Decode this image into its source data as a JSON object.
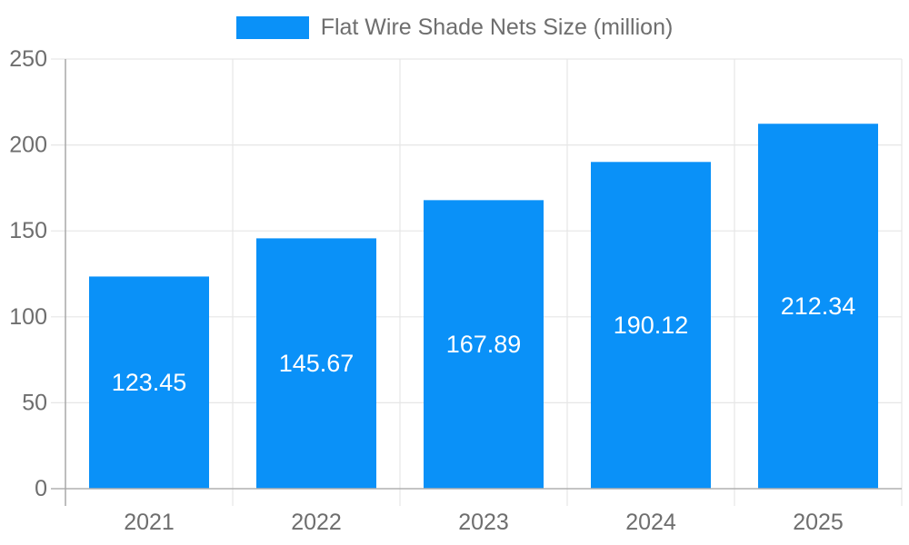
{
  "legend": {
    "label": "Flat Wire Shade Nets Size (million)",
    "swatch_color": "#0a91f8"
  },
  "chart_data": {
    "type": "bar",
    "title": "Flat Wire Shade Nets Size (million)",
    "categories": [
      "2021",
      "2022",
      "2023",
      "2024",
      "2025"
    ],
    "values": [
      123.45,
      145.67,
      167.89,
      190.12,
      212.34
    ],
    "value_labels": [
      "123.45",
      "145.67",
      "167.89",
      "190.12",
      "212.34"
    ],
    "xlabel": "",
    "ylabel": "",
    "ylim": [
      0,
      250
    ],
    "yticks": [
      0,
      50,
      100,
      150,
      200,
      250
    ],
    "ytick_labels": [
      "0",
      "50",
      "100",
      "150",
      "200",
      "250"
    ],
    "grid": true,
    "legend_position": "top-center",
    "value_label_position": "center-of-bar",
    "colors": {
      "bar": "#0a91f8",
      "gridline": "#e6e6e6",
      "axis": "#a8a8a8",
      "baseline": "#b0b0b0",
      "tick_label": "#6e6e6e",
      "value_label": "#ffffff",
      "background": "#ffffff"
    }
  }
}
